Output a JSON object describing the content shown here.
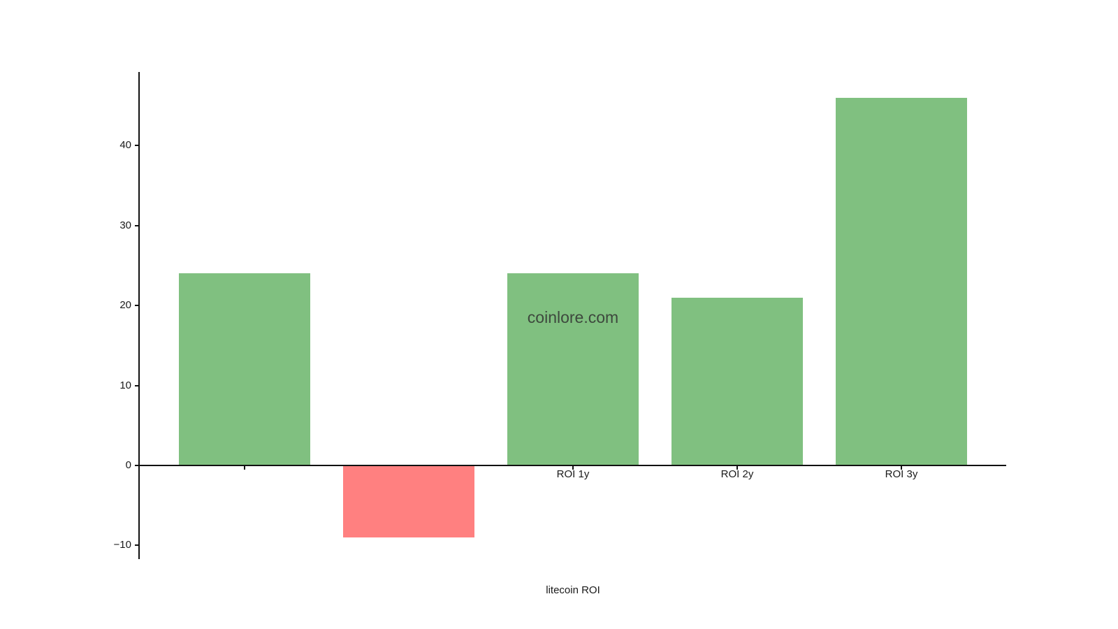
{
  "chart_data": {
    "type": "bar",
    "title": "",
    "xlabel": "litecoin ROI",
    "ylabel": "",
    "watermark": "coinlore.com",
    "categories": [
      "",
      "",
      "ROI 1y",
      "ROI 2y",
      "ROI 3y"
    ],
    "values": [
      24,
      -9,
      24,
      21,
      46
    ],
    "bar_colors": [
      "#80c080",
      "#ff8080",
      "#80c080",
      "#80c080",
      "#80c080"
    ],
    "y_tick_values": [
      -10,
      0,
      10,
      20,
      30,
      40
    ],
    "y_tick_labels": [
      "−10",
      "0",
      "10",
      "20",
      "30",
      "40"
    ],
    "ylim": [
      -11.7,
      49.2
    ],
    "grid": false,
    "legend": null,
    "colors": {
      "positive": "#80c080",
      "negative": "#ff8080",
      "axis": "#111111",
      "text": "#1a1a1a",
      "watermark": "#3d483d",
      "background": "#ffffff"
    }
  }
}
